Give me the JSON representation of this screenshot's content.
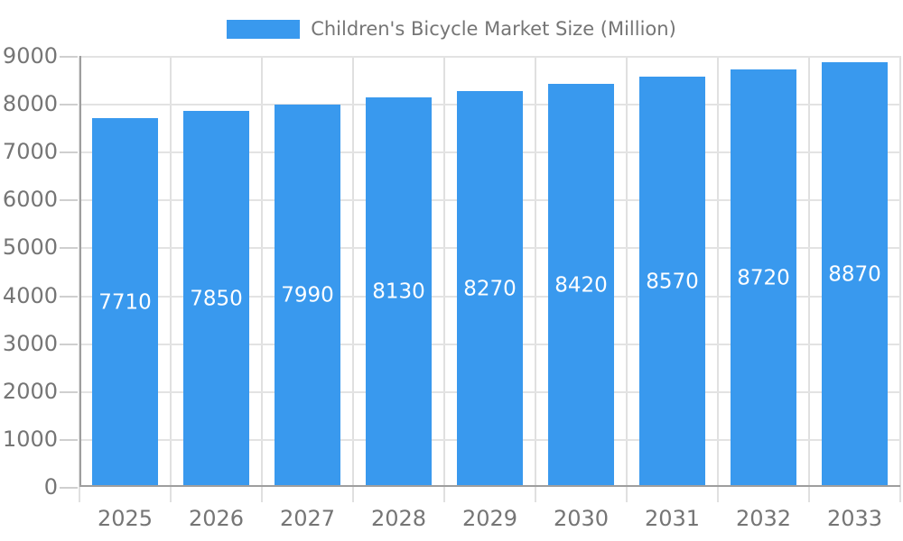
{
  "legend": {
    "label": "Children's Bicycle Market Size (Million)"
  },
  "chart_data": {
    "type": "bar",
    "title": "Children's Bicycle Market Size (Million)",
    "series_name": "Children's Bicycle Market Size (Million)",
    "categories": [
      "2025",
      "2026",
      "2027",
      "2028",
      "2029",
      "2030",
      "2031",
      "2032",
      "2033"
    ],
    "values": [
      7710,
      7850,
      7990,
      8130,
      8270,
      8420,
      8570,
      8720,
      8870
    ],
    "xlabel": "",
    "ylabel": "",
    "ylim": [
      0,
      9000
    ],
    "yticks": [
      0,
      1000,
      2000,
      3000,
      4000,
      5000,
      6000,
      7000,
      8000,
      9000
    ],
    "grid": true,
    "legend_position": "top",
    "bar_color": "#3999EE",
    "value_label_color": "#FFFFFF",
    "axis_label_color": "#757575",
    "background_color": "#FFFFFF"
  }
}
